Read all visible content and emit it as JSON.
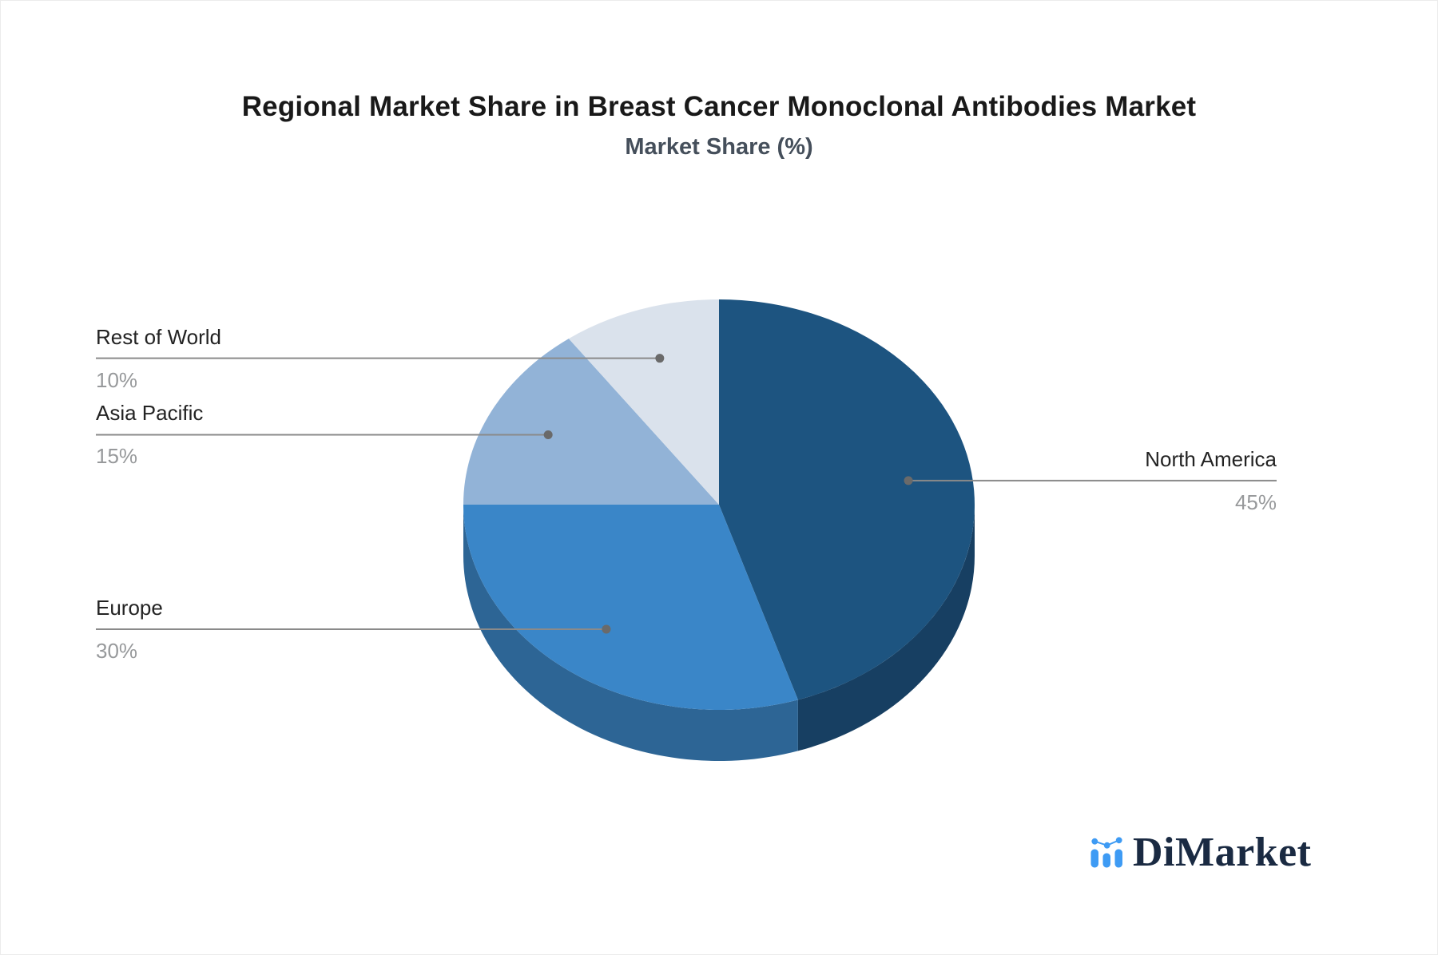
{
  "page": {
    "background": "#ffffff",
    "border_color": "#ececec"
  },
  "chart_data": {
    "type": "pie",
    "style": "3d-pie",
    "title": "Regional Market Share in Breast Cancer Monoclonal Antibodies Market",
    "subtitle": "Market Share (%)",
    "unit": "%",
    "start_angle_deg": 0,
    "direction": "clockwise",
    "legend": "none",
    "title_color": "#191919",
    "subtitle_color": "#454f5b",
    "slices": [
      {
        "label": "North America",
        "value": 45,
        "display": "45%",
        "color": "#1d5480",
        "side_color": "#173f62",
        "callout_side": "right"
      },
      {
        "label": "Europe",
        "value": 30,
        "display": "30%",
        "color": "#3a86c8",
        "side_color": "#2d6595",
        "callout_side": "left"
      },
      {
        "label": "Asia Pacific",
        "value": 15,
        "display": "15%",
        "color": "#92b3d7",
        "side_color": "#7fa6cc",
        "callout_side": "left"
      },
      {
        "label": "Rest of World",
        "value": 10,
        "display": "10%",
        "color": "#dae2ec",
        "side_color": "#c3cfde",
        "callout_side": "left"
      }
    ],
    "callout": {
      "line_color": "#8a8a8a",
      "dot_color": "#6a6a6a",
      "label_color": "#232323",
      "value_color": "#97999b"
    }
  },
  "logo": {
    "text": "DiMarket",
    "text_color": "#1a2a42",
    "icon_color": "#3e9bf4",
    "icon": "bar-line-chart-icon"
  }
}
